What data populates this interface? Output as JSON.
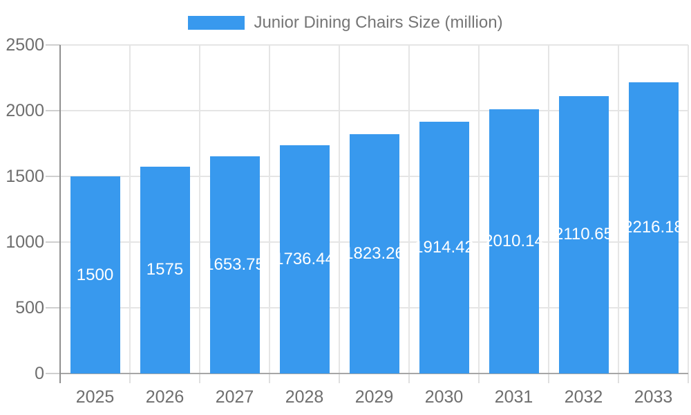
{
  "legend": {
    "label": "Junior Dining Chairs Size (million)"
  },
  "chart_data": {
    "type": "bar",
    "title": "Junior Dining Chairs Size (million)",
    "categories": [
      "2025",
      "2026",
      "2027",
      "2028",
      "2029",
      "2030",
      "2031",
      "2032",
      "2033"
    ],
    "values": [
      1500,
      1575,
      1653.75,
      1736.44,
      1823.26,
      1914.42,
      2010.14,
      2110.65,
      2216.18
    ],
    "value_labels": [
      "1500",
      "1575",
      "1653.75",
      "1736.44",
      "1823.26",
      "1914.42",
      "2010.14",
      "2110.65",
      "2216.18"
    ],
    "xlabel": "",
    "ylabel": "",
    "ylim": [
      0,
      2500
    ],
    "yticks": [
      0,
      500,
      1000,
      1500,
      2000,
      2500
    ],
    "ytick_labels": [
      "0",
      "500",
      "1000",
      "1500",
      "2000",
      "2500"
    ],
    "grid": true,
    "legend_position": "top",
    "bar_color": "#3899ee",
    "bar_label_color": "#ffffff",
    "axis_text_color": "#6e6e6e",
    "grid_color": "#e5e5e5"
  }
}
